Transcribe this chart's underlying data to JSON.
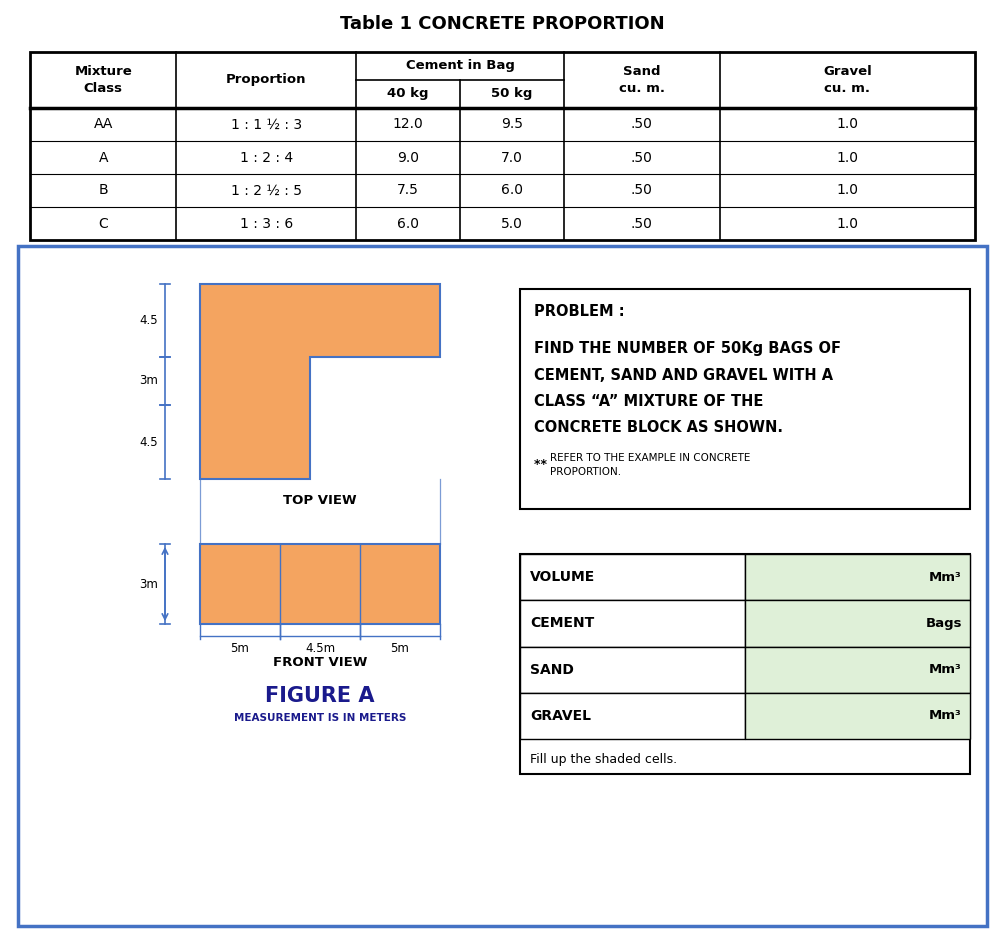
{
  "title": "Table 1 CONCRETE PROPORTION",
  "table_data": [
    [
      "AA",
      "1 : 1 ½ : 3",
      "12.0",
      "9.5",
      ".50",
      "1.0"
    ],
    [
      "A",
      "1 : 2 : 4",
      "9.0",
      "7.0",
      ".50",
      "1.0"
    ],
    [
      "B",
      "1 : 2 ½ : 5",
      "7.5",
      "6.0",
      ".50",
      "1.0"
    ],
    [
      "C",
      "1 : 3 : 6",
      "6.0",
      "5.0",
      ".50",
      "1.0"
    ]
  ],
  "problem_text_title": "PROBLEM :",
  "problem_text_lines": [
    "FIND THE NUMBER OF 50Kg BAGS OF",
    "CEMENT, SAND AND GRAVEL WITH A",
    "CLASS “A” MIXTURE OF THE",
    "CONCRETE BLOCK AS SHOWN."
  ],
  "problem_note_star": "** ",
  "problem_note_text": "REFER TO THE EXAMPLE IN CONCRETE\nPROPORTION.",
  "solution_rows": [
    "VOLUME",
    "CEMENT",
    "SAND",
    "GRAVEL"
  ],
  "solution_units": [
    "Mm³",
    "Bags",
    "Mm³",
    "Mm³"
  ],
  "fill_text": "Fill up the shaded cells.",
  "figure_title": "FIGURE A",
  "figure_subtitle": "MEASUREMENT IS IN METERS",
  "top_view_label": "TOP VIEW",
  "front_view_label": "FRONT VIEW",
  "dim_left_labels": [
    "4.5",
    "3m",
    "4.5"
  ],
  "dim_front_side": "3m",
  "dim_front_bottom": [
    "5m",
    "4.5m",
    "5m"
  ],
  "shape_fill": "#F4A460",
  "shape_edge": "#4472C4",
  "dim_color": "#4472C4",
  "box_color": "#4472C4",
  "sol_fill": "#DFF0D8",
  "bg": "#FFFFFF",
  "table_title_fontsize": 13,
  "header_fontsize": 9.5,
  "data_fontsize": 10,
  "label_fontsize": 9
}
